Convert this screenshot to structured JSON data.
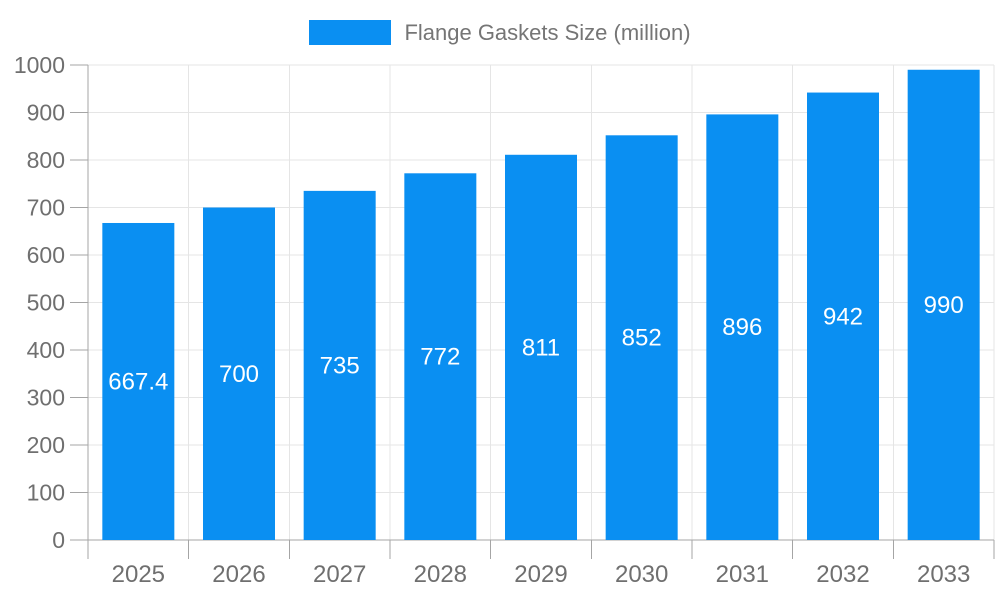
{
  "chart_data": {
    "type": "bar",
    "title": "Flange Gaskets Size (million)",
    "categories": [
      "2025",
      "2026",
      "2027",
      "2028",
      "2029",
      "2030",
      "2031",
      "2032",
      "2033"
    ],
    "values": [
      667.4,
      700,
      735,
      772,
      811,
      852,
      896,
      942,
      990
    ],
    "bar_labels": [
      "667.4",
      "700",
      "735",
      "772",
      "811",
      "852",
      "896",
      "942",
      "990"
    ],
    "xlabel": "",
    "ylabel": "",
    "ylim": [
      0,
      1000
    ],
    "ytick_step": 100,
    "ytick_labels": [
      "0",
      "100",
      "200",
      "300",
      "400",
      "500",
      "600",
      "700",
      "800",
      "900",
      "1000"
    ],
    "grid": "horizontal and vertical light gray gridlines",
    "legend_position": "top-center",
    "value_label_position": "center of bar"
  },
  "colors": {
    "bar": "#0a8ff2",
    "grid": "#e5e5e5",
    "axis": "#a5a5a5",
    "tick_label": "#6f6f6f",
    "value_label": "#ffffff",
    "legend_text": "#757575",
    "background": "#ffffff"
  }
}
